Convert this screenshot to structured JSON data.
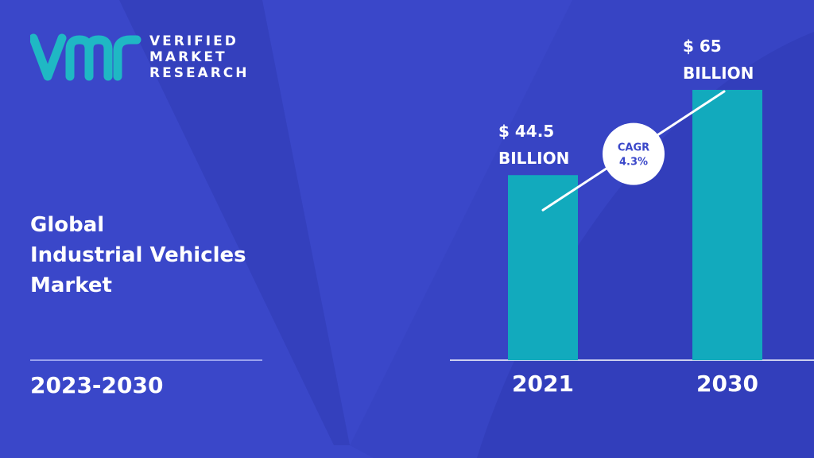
{
  "brand": {
    "line1": "VERIFIED",
    "line2": "MARKET",
    "line3": "RESEARCH"
  },
  "title": {
    "line1": "Global",
    "line2": "Industrial Vehicles",
    "line3": "Market"
  },
  "period": "2023-2030",
  "colors": {
    "background": "#3a47c9",
    "bar": "#12aabd",
    "logo": "#1fb8c4"
  },
  "chart_data": {
    "type": "bar",
    "categories": [
      "2021",
      "2030"
    ],
    "values": [
      44.5,
      65
    ],
    "value_labels": [
      [
        "$ 44.5",
        "BILLION"
      ],
      [
        "$ 65",
        "BILLION"
      ]
    ],
    "cagr_label": "CAGR",
    "cagr_value": "4.3%",
    "title": "",
    "xlabel": "",
    "ylabel": "",
    "ylim": [
      0,
      65
    ]
  }
}
